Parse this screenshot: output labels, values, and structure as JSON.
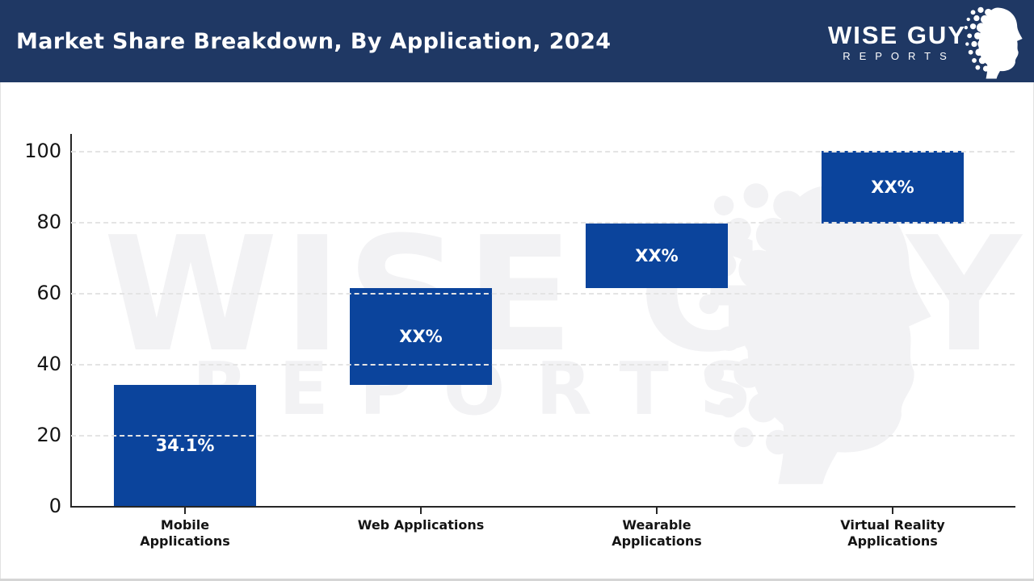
{
  "header": {
    "title": "Market Share Breakdown, By Application, 2024",
    "bg_color": "#1f3864",
    "logo": {
      "line1": "WISE GUY",
      "line2": "REPORTS"
    }
  },
  "watermark": {
    "line1": "WISE GUY",
    "line2": "REPORTS"
  },
  "chart_data": {
    "type": "bar",
    "subtype": "waterfall",
    "title": "Market Share Breakdown, By Application, 2024",
    "categories": [
      "Mobile\nApplications",
      "Web Applications",
      "Wearable\nApplications",
      "Virtual Reality\nApplications"
    ],
    "segments": [
      {
        "category": "Mobile Applications",
        "start": 0,
        "end": 34.1,
        "label": "34.1%"
      },
      {
        "category": "Web Applications",
        "start": 34.1,
        "end": 61.4,
        "label": "XX%"
      },
      {
        "category": "Wearable Applications",
        "start": 61.4,
        "end": 79.5,
        "label": "XX%"
      },
      {
        "category": "Virtual Reality Applications",
        "start": 79.5,
        "end": 100,
        "label": "XX%"
      }
    ],
    "y_ticks": [
      0,
      20,
      40,
      60,
      80,
      100
    ],
    "ylim": [
      0,
      105
    ],
    "xlabel": "",
    "ylabel": "",
    "grid": "dashed-horizontal",
    "legend": null,
    "bar_color": "#0b449c",
    "axis_color": "#262626",
    "grid_color": "#e4e4e4",
    "label_color": "#ffffff"
  }
}
